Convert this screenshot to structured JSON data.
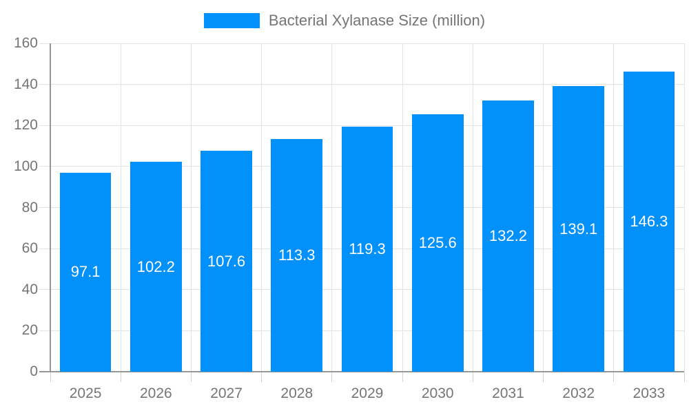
{
  "chart_data": {
    "type": "bar",
    "title": "Bacterial Xylanase Size (million)",
    "categories": [
      "2025",
      "2026",
      "2027",
      "2028",
      "2029",
      "2030",
      "2031",
      "2032",
      "2033"
    ],
    "series": [
      {
        "name": "Bacterial Xylanase Size (million)",
        "values": [
          97.1,
          102.2,
          107.6,
          113.3,
          119.3,
          125.6,
          132.2,
          139.1,
          146.3
        ]
      }
    ],
    "xlabel": "",
    "ylabel": "",
    "ylim": [
      0,
      160
    ],
    "yticks": [
      0,
      20,
      40,
      60,
      80,
      100,
      120,
      140,
      160
    ],
    "grid": true,
    "legend_position": "top-center",
    "value_label_position": "inside-middle",
    "colors": {
      "bar": "#0290fa",
      "grid": "#e3e3e3",
      "tick": "#d2d2d2",
      "axis": "#969696",
      "text": "#757575",
      "value_label": "#ffffff",
      "background": "#ffffff"
    }
  }
}
